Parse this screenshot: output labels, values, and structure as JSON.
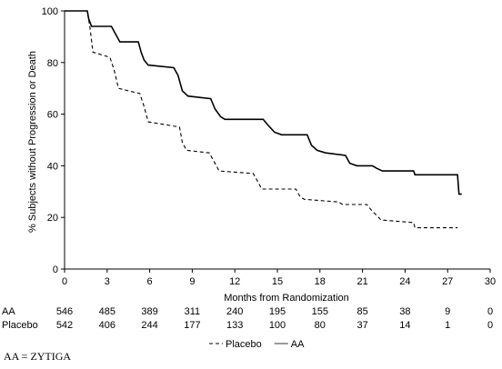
{
  "chart_data": {
    "type": "line",
    "title": "",
    "xlabel": "Months from Randomization",
    "ylabel": "% Subjects without Progression or Death",
    "xlim": [
      0,
      30
    ],
    "ylim": [
      0,
      100
    ],
    "xticks": [
      0,
      3,
      6,
      9,
      12,
      15,
      18,
      21,
      24,
      27,
      30
    ],
    "yticks": [
      0,
      20,
      40,
      60,
      80,
      100
    ],
    "grid": false,
    "legend_position": "bottom-center",
    "series": [
      {
        "name": "AA",
        "style": "solid",
        "color": "#000000",
        "points": [
          [
            0,
            100
          ],
          [
            1.6,
            100
          ],
          [
            1.7,
            97
          ],
          [
            1.9,
            94
          ],
          [
            3.3,
            94
          ],
          [
            3.5,
            92
          ],
          [
            3.7,
            90
          ],
          [
            3.9,
            88
          ],
          [
            5.2,
            88
          ],
          [
            5.4,
            84
          ],
          [
            5.6,
            81
          ],
          [
            5.9,
            79
          ],
          [
            7.7,
            78
          ],
          [
            8.0,
            75
          ],
          [
            8.3,
            69
          ],
          [
            8.7,
            67
          ],
          [
            10.3,
            66
          ],
          [
            10.6,
            62
          ],
          [
            11.0,
            59
          ],
          [
            11.3,
            58
          ],
          [
            14.0,
            58
          ],
          [
            14.3,
            56
          ],
          [
            14.8,
            53
          ],
          [
            15.3,
            52
          ],
          [
            17.1,
            52
          ],
          [
            17.4,
            48
          ],
          [
            17.8,
            46
          ],
          [
            18.4,
            45
          ],
          [
            19.8,
            44
          ],
          [
            20.1,
            41
          ],
          [
            20.6,
            40
          ],
          [
            21.7,
            40
          ],
          [
            22.0,
            39
          ],
          [
            22.4,
            38
          ],
          [
            24.6,
            38
          ],
          [
            24.7,
            36.5
          ],
          [
            27.7,
            36.5
          ],
          [
            27.8,
            29
          ],
          [
            28.0,
            29
          ]
        ]
      },
      {
        "name": "Placebo",
        "style": "dashed",
        "color": "#000000",
        "points": [
          [
            0,
            100
          ],
          [
            1.6,
            100
          ],
          [
            1.8,
            93
          ],
          [
            2.0,
            84
          ],
          [
            3.2,
            82
          ],
          [
            3.5,
            77
          ],
          [
            3.8,
            70
          ],
          [
            5.3,
            68
          ],
          [
            5.6,
            63
          ],
          [
            5.9,
            57
          ],
          [
            8.1,
            55
          ],
          [
            8.3,
            49
          ],
          [
            8.6,
            46
          ],
          [
            10.2,
            45
          ],
          [
            10.5,
            42
          ],
          [
            10.9,
            38
          ],
          [
            13.3,
            37
          ],
          [
            13.6,
            34
          ],
          [
            13.9,
            31
          ],
          [
            16.3,
            31
          ],
          [
            16.6,
            28
          ],
          [
            16.9,
            27
          ],
          [
            19.3,
            26
          ],
          [
            19.6,
            25
          ],
          [
            21.3,
            25
          ],
          [
            21.6,
            23
          ],
          [
            22.3,
            19
          ],
          [
            24.6,
            18
          ],
          [
            24.7,
            16
          ],
          [
            27.7,
            16
          ]
        ]
      }
    ],
    "risk_table": {
      "times": [
        0,
        3,
        6,
        9,
        12,
        15,
        18,
        21,
        24,
        27,
        30
      ],
      "rows": [
        {
          "label": "AA",
          "values": [
            "546",
            "485",
            "389",
            "311",
            "240",
            "195",
            "155",
            "85",
            "38",
            "9",
            "0"
          ]
        },
        {
          "label": "Placebo",
          "values": [
            "542",
            "406",
            "244",
            "177",
            "133",
            "100",
            "80",
            "37",
            "14",
            "1",
            "0"
          ]
        }
      ]
    },
    "legend": [
      {
        "label": "Placebo",
        "style": "dashed"
      },
      {
        "label": "AA",
        "style": "solid"
      }
    ]
  },
  "footnote": "AA = ZYTIGA"
}
